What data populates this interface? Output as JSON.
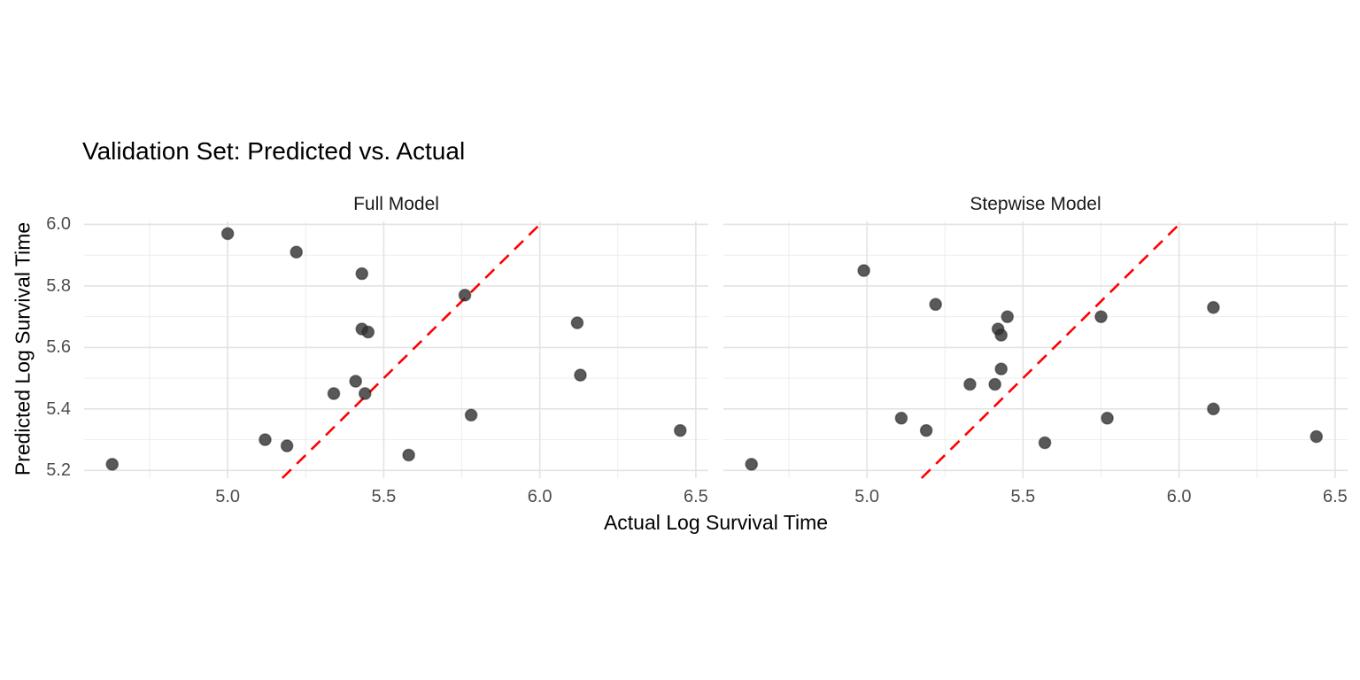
{
  "chart": {
    "title": "Validation Set: Predicted vs. Actual"
  },
  "chart_data": {
    "type": "scatter",
    "title": "Validation Set: Predicted vs. Actual",
    "xlabel": "Actual Log Survival Time",
    "ylabel": "Predicted Log Survival Time",
    "xlim": [
      4.54,
      6.54
    ],
    "ylim": [
      5.175,
      6.01
    ],
    "x_ticks": [
      5.0,
      5.5,
      6.0,
      6.5
    ],
    "y_ticks": [
      5.2,
      5.4,
      5.6,
      5.8,
      6.0
    ],
    "x_minor_ticks": [
      4.75,
      5.25,
      5.75,
      6.25
    ],
    "y_minor_ticks": [
      5.3,
      5.5,
      5.7,
      5.9
    ],
    "grid": {
      "major_color": "#e3e3e3",
      "minor_color": "#ededed",
      "background": "#ffffff"
    },
    "legend_position": "none",
    "reference_line": {
      "kind": "identity",
      "equation": "y = x",
      "color": "#ff0000",
      "dashed": true
    },
    "point_style": {
      "fill": "#303030",
      "opacity": 0.8,
      "stroke": "#1a1a1a",
      "radius": 6.6
    },
    "tick_label_color": "#4d4d4d",
    "facets": [
      {
        "label": "Full Model",
        "points": [
          [
            4.63,
            5.22
          ],
          [
            5.0,
            5.97
          ],
          [
            5.12,
            5.3
          ],
          [
            5.19,
            5.28
          ],
          [
            5.22,
            5.91
          ],
          [
            5.34,
            5.45
          ],
          [
            5.41,
            5.49
          ],
          [
            5.43,
            5.84
          ],
          [
            5.43,
            5.66
          ],
          [
            5.45,
            5.65
          ],
          [
            5.44,
            5.45
          ],
          [
            5.58,
            5.25
          ],
          [
            5.76,
            5.77
          ],
          [
            5.78,
            5.38
          ],
          [
            6.12,
            5.68
          ],
          [
            6.13,
            5.51
          ],
          [
            6.45,
            5.33
          ]
        ]
      },
      {
        "label": "Stepwise Model",
        "points": [
          [
            4.63,
            5.22
          ],
          [
            4.99,
            5.85
          ],
          [
            5.11,
            5.37
          ],
          [
            5.19,
            5.33
          ],
          [
            5.22,
            5.74
          ],
          [
            5.33,
            5.48
          ],
          [
            5.41,
            5.48
          ],
          [
            5.42,
            5.66
          ],
          [
            5.43,
            5.64
          ],
          [
            5.45,
            5.7
          ],
          [
            5.43,
            5.53
          ],
          [
            5.57,
            5.29
          ],
          [
            5.75,
            5.7
          ],
          [
            5.77,
            5.37
          ],
          [
            6.11,
            5.73
          ],
          [
            6.11,
            5.4
          ],
          [
            6.44,
            5.31
          ]
        ]
      }
    ]
  }
}
